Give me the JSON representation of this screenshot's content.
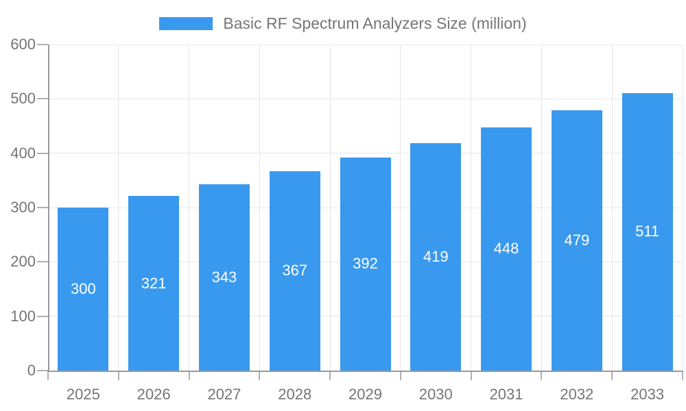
{
  "legend": {
    "label": "Basic RF Spectrum Analyzers Size (million)"
  },
  "chart_data": {
    "type": "bar",
    "title": "Basic RF Spectrum Analyzers Size (million)",
    "categories": [
      "2025",
      "2026",
      "2027",
      "2028",
      "2029",
      "2030",
      "2031",
      "2032",
      "2033"
    ],
    "values": [
      300,
      321,
      343,
      367,
      392,
      419,
      448,
      479,
      511
    ],
    "xlabel": "",
    "ylabel": "",
    "ylim": [
      0,
      600
    ],
    "yticks": [
      0,
      100,
      200,
      300,
      400,
      500,
      600
    ],
    "grid": true,
    "legend_position": "top",
    "bar_labels_inside": true
  },
  "colors": {
    "bar": "#3999ee",
    "bar_value_text": "#ffffff",
    "grid": "#e6e6e6",
    "axis": "#999999",
    "tick": "#b0b0b0",
    "text": "#757575"
  }
}
